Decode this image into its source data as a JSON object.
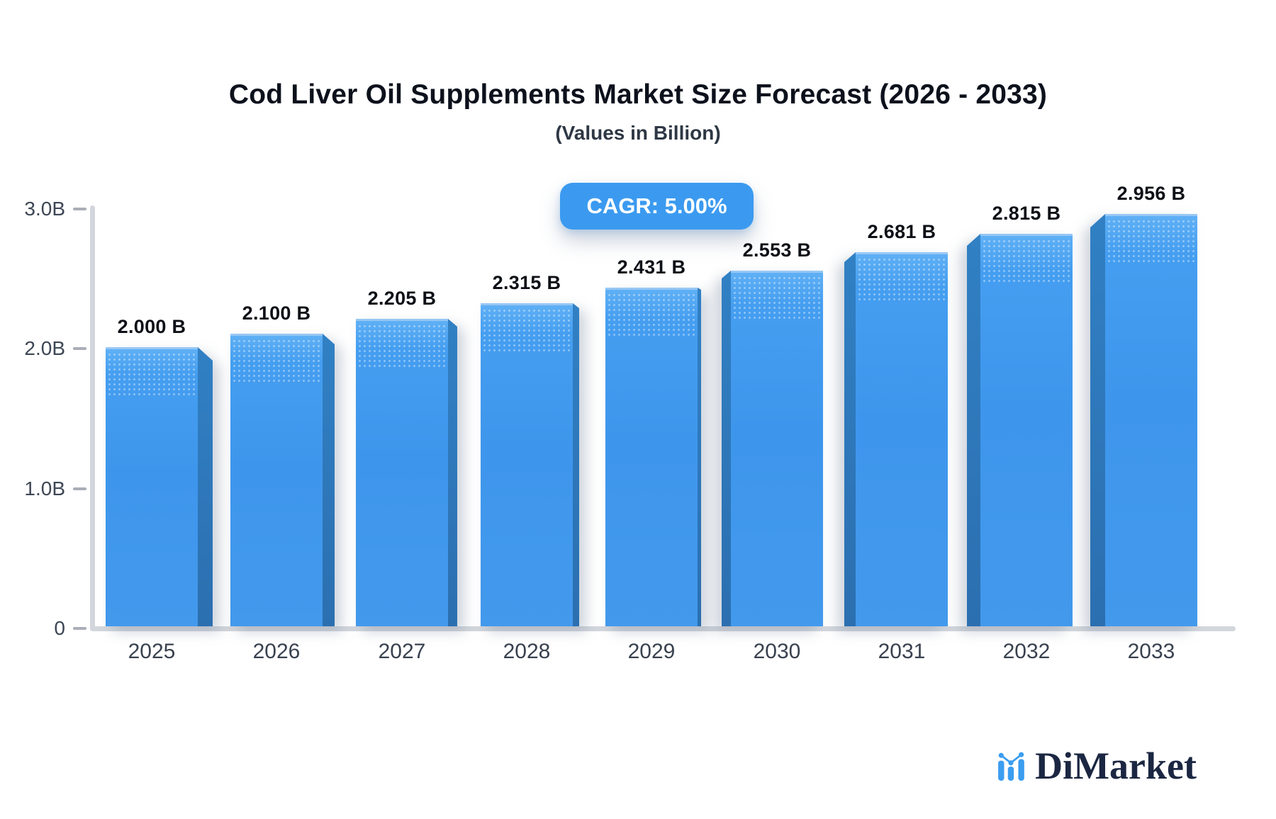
{
  "header": {
    "title": "Cod Liver Oil Supplements Market Size Forecast (2026 - 2033)",
    "subtitle": "(Values in Billion)"
  },
  "badge": {
    "label": "CAGR: 5.00%"
  },
  "chart_data": {
    "type": "bar",
    "title": "Cod Liver Oil Supplements Market Size Forecast (2026 - 2033)",
    "subtitle": "(Values in Billion)",
    "categories": [
      "2025",
      "2026",
      "2027",
      "2028",
      "2029",
      "2030",
      "2031",
      "2032",
      "2033"
    ],
    "values": [
      2.0,
      2.1,
      2.205,
      2.315,
      2.431,
      2.553,
      2.681,
      2.815,
      2.956
    ],
    "value_labels": [
      "2.000 B",
      "2.100 B",
      "2.205 B",
      "2.315 B",
      "2.431 B",
      "2.553 B",
      "2.681 B",
      "2.815 B",
      "2.956 B"
    ],
    "annotation": "CAGR: 5.00%",
    "xlabel": "",
    "ylabel": "",
    "ylim": [
      0,
      3
    ],
    "yticks": [
      {
        "value": 0,
        "label": "0"
      },
      {
        "value": 1,
        "label": "1.0B"
      },
      {
        "value": 2,
        "label": "2.0B"
      },
      {
        "value": 3,
        "label": "3.0B"
      }
    ],
    "grid": false,
    "legend_position": "none"
  },
  "branding": {
    "logo_text": "DiMarket",
    "logo_icon": "bar-chart-logo-icon"
  },
  "colors": {
    "bar_face": "#3e96ec",
    "bar_face_highlight": "#5fb0f5",
    "bar_side": "#2b6fb0",
    "badge_background": "#3b9af0",
    "badge_text": "#ffffff",
    "axis_line": "#d3d6dc",
    "title_text": "#0c111c",
    "tick_text": "#3d4654",
    "logo_text": "#1b2742",
    "background": "#ffffff"
  }
}
